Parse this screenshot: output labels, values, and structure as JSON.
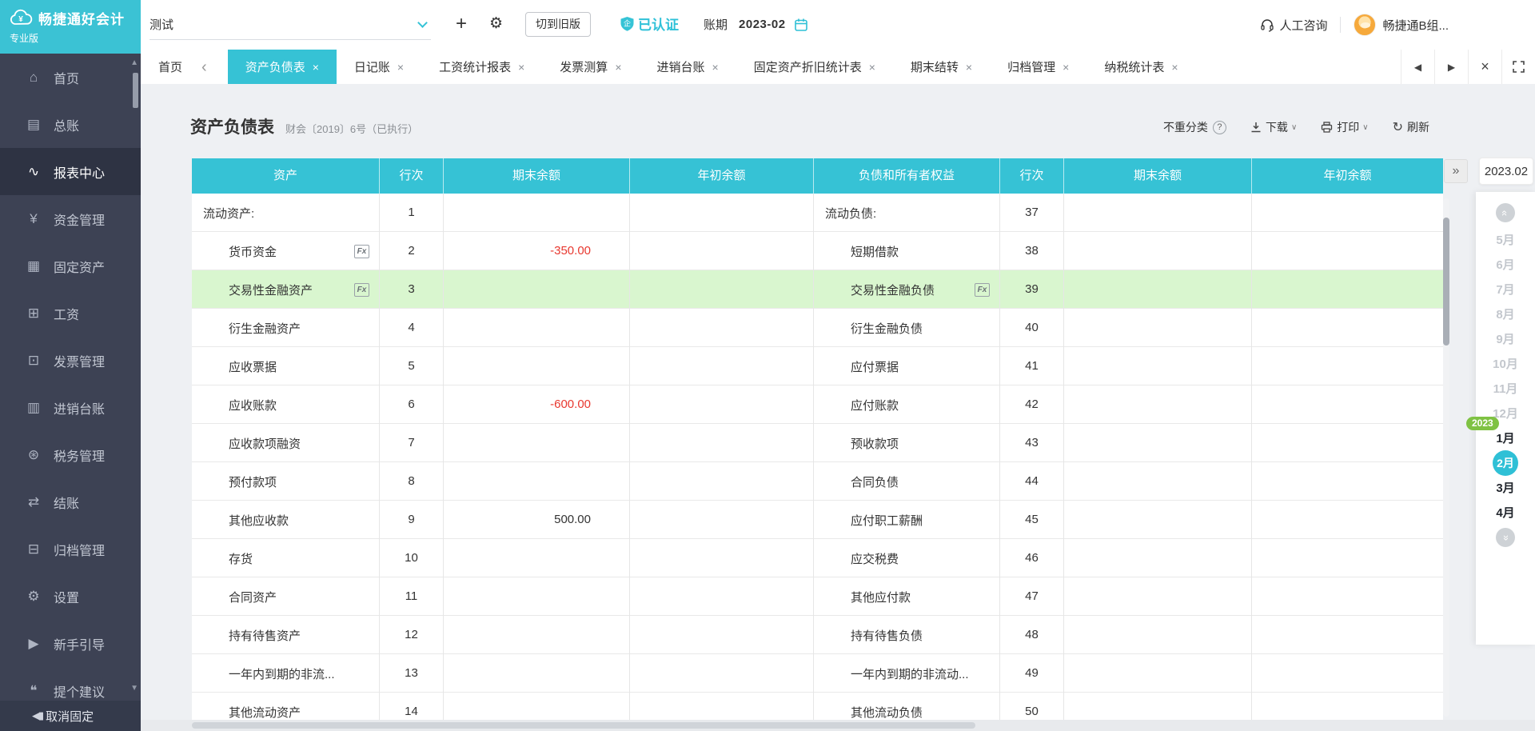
{
  "brand": {
    "name": "畅捷通好会计",
    "edition": "专业版"
  },
  "colors": {
    "accent": "#36c2d5",
    "highlight_row": "#d9f6cf",
    "negative": "#e8382f",
    "sidebar_bg": "#3d4254",
    "year_badge": "#7fc243"
  },
  "topbar": {
    "account": "测试",
    "new_tab": "+",
    "switch_old": "切到旧版",
    "certified": "已认证",
    "period_label": "账期",
    "period_value": "2023-02",
    "support": "人工咨询",
    "username": "畅捷通B组..."
  },
  "tabbar": {
    "home": "首页",
    "back": "‹",
    "close_glyph": "×",
    "tabs": [
      {
        "label": "资产负债表",
        "active": true
      },
      {
        "label": "日记账",
        "active": false
      },
      {
        "label": "工资统计报表",
        "active": false
      },
      {
        "label": "发票测算",
        "active": false
      },
      {
        "label": "进销台账",
        "active": false
      },
      {
        "label": "固定资产折旧统计表",
        "active": false
      },
      {
        "label": "期末结转",
        "active": false
      },
      {
        "label": "归档管理",
        "active": false
      },
      {
        "label": "纳税统计表",
        "active": false
      }
    ]
  },
  "sidebar": {
    "items": [
      {
        "icon": "home-icon",
        "glyph": "⌂",
        "label": "首页",
        "active": false
      },
      {
        "icon": "general-ledger-icon",
        "glyph": "▤",
        "label": "总账",
        "active": false
      },
      {
        "icon": "report-center-icon",
        "glyph": "∿",
        "label": "报表中心",
        "active": true
      },
      {
        "icon": "funds-management-icon",
        "glyph": "¥",
        "label": "资金管理",
        "active": false
      },
      {
        "icon": "fixed-assets-icon",
        "glyph": "▦",
        "label": "固定资产",
        "active": false
      },
      {
        "icon": "salary-icon",
        "glyph": "⊞",
        "label": "工资",
        "active": false
      },
      {
        "icon": "invoice-management-icon",
        "glyph": "⊡",
        "label": "发票管理",
        "active": false
      },
      {
        "icon": "purchase-sales-icon",
        "glyph": "▥",
        "label": "进销台账",
        "active": false
      },
      {
        "icon": "tax-management-icon",
        "glyph": "⊛",
        "label": "税务管理",
        "active": false
      },
      {
        "icon": "closing-icon",
        "glyph": "⇄",
        "label": "结账",
        "active": false
      },
      {
        "icon": "archive-management-icon",
        "glyph": "⊟",
        "label": "归档管理",
        "active": false
      },
      {
        "icon": "settings-icon",
        "glyph": "⚙",
        "label": "设置",
        "active": false
      },
      {
        "icon": "beginner-guide-icon",
        "glyph": "▶",
        "label": "新手引导",
        "active": false
      },
      {
        "icon": "feedback-icon",
        "glyph": "❝",
        "label": "提个建议",
        "active": false
      }
    ],
    "unpin": "取消固定"
  },
  "page": {
    "title": "资产负债表",
    "subtitle": "财会〔2019〕6号（已执行）",
    "toolbar": {
      "no_reclass": "不重分类",
      "download": "下载",
      "print": "打印",
      "refresh": "刷新"
    }
  },
  "table": {
    "headers": [
      "资产",
      "行次",
      "期末余额",
      "年初余额",
      "负债和所有者权益",
      "行次",
      "期末余额",
      "年初余额"
    ],
    "rows": [
      {
        "asset": "流动资产:",
        "asset_indent": false,
        "asset_fx": false,
        "asset_line": "1",
        "asset_end": "",
        "asset_begin": "",
        "liab": "流动负债:",
        "liab_indent": false,
        "liab_fx": false,
        "liab_line": "37",
        "liab_end": "",
        "liab_begin": "",
        "highlight": false
      },
      {
        "asset": "货币资金",
        "asset_indent": true,
        "asset_fx": true,
        "asset_line": "2",
        "asset_end": "-350.00",
        "asset_begin": "",
        "liab": "短期借款",
        "liab_indent": true,
        "liab_fx": false,
        "liab_line": "38",
        "liab_end": "",
        "liab_begin": "",
        "highlight": false
      },
      {
        "asset": "交易性金融资产",
        "asset_indent": true,
        "asset_fx": true,
        "asset_line": "3",
        "asset_end": "",
        "asset_begin": "",
        "liab": "交易性金融负债",
        "liab_indent": true,
        "liab_fx": true,
        "liab_line": "39",
        "liab_end": "",
        "liab_begin": "",
        "highlight": true
      },
      {
        "asset": "衍生金融资产",
        "asset_indent": true,
        "asset_fx": false,
        "asset_line": "4",
        "asset_end": "",
        "asset_begin": "",
        "liab": "衍生金融负债",
        "liab_indent": true,
        "liab_fx": false,
        "liab_line": "40",
        "liab_end": "",
        "liab_begin": "",
        "highlight": false
      },
      {
        "asset": "应收票据",
        "asset_indent": true,
        "asset_fx": false,
        "asset_line": "5",
        "asset_end": "",
        "asset_begin": "",
        "liab": "应付票据",
        "liab_indent": true,
        "liab_fx": false,
        "liab_line": "41",
        "liab_end": "",
        "liab_begin": "",
        "highlight": false
      },
      {
        "asset": "应收账款",
        "asset_indent": true,
        "asset_fx": false,
        "asset_line": "6",
        "asset_end": "-600.00",
        "asset_begin": "",
        "liab": "应付账款",
        "liab_indent": true,
        "liab_fx": false,
        "liab_line": "42",
        "liab_end": "",
        "liab_begin": "",
        "highlight": false
      },
      {
        "asset": "应收款项融资",
        "asset_indent": true,
        "asset_fx": false,
        "asset_line": "7",
        "asset_end": "",
        "asset_begin": "",
        "liab": "预收款项",
        "liab_indent": true,
        "liab_fx": false,
        "liab_line": "43",
        "liab_end": "",
        "liab_begin": "",
        "highlight": false
      },
      {
        "asset": "预付款项",
        "asset_indent": true,
        "asset_fx": false,
        "asset_line": "8",
        "asset_end": "",
        "asset_begin": "",
        "liab": "合同负债",
        "liab_indent": true,
        "liab_fx": false,
        "liab_line": "44",
        "liab_end": "",
        "liab_begin": "",
        "highlight": false
      },
      {
        "asset": "其他应收款",
        "asset_indent": true,
        "asset_fx": false,
        "asset_line": "9",
        "asset_end": "500.00",
        "asset_begin": "",
        "liab": "应付职工薪酬",
        "liab_indent": true,
        "liab_fx": false,
        "liab_line": "45",
        "liab_end": "",
        "liab_begin": "",
        "highlight": false
      },
      {
        "asset": "存货",
        "asset_indent": true,
        "asset_fx": false,
        "asset_line": "10",
        "asset_end": "",
        "asset_begin": "",
        "liab": "应交税费",
        "liab_indent": true,
        "liab_fx": false,
        "liab_line": "46",
        "liab_end": "",
        "liab_begin": "",
        "highlight": false
      },
      {
        "asset": "合同资产",
        "asset_indent": true,
        "asset_fx": false,
        "asset_line": "11",
        "asset_end": "",
        "asset_begin": "",
        "liab": "其他应付款",
        "liab_indent": true,
        "liab_fx": false,
        "liab_line": "47",
        "liab_end": "",
        "liab_begin": "",
        "highlight": false
      },
      {
        "asset": "持有待售资产",
        "asset_indent": true,
        "asset_fx": false,
        "asset_line": "12",
        "asset_end": "",
        "asset_begin": "",
        "liab": "持有待售负债",
        "liab_indent": true,
        "liab_fx": false,
        "liab_line": "48",
        "liab_end": "",
        "liab_begin": "",
        "highlight": false
      },
      {
        "asset": "一年内到期的非流...",
        "asset_indent": true,
        "asset_fx": false,
        "asset_line": "13",
        "asset_end": "",
        "asset_begin": "",
        "liab": "一年内到期的非流动...",
        "liab_indent": true,
        "liab_fx": false,
        "liab_line": "49",
        "liab_end": "",
        "liab_begin": "",
        "highlight": false
      },
      {
        "asset": "其他流动资产",
        "asset_indent": true,
        "asset_fx": false,
        "asset_line": "14",
        "asset_end": "",
        "asset_begin": "",
        "liab": "其他流动负债",
        "liab_indent": true,
        "liab_fx": false,
        "liab_line": "50",
        "liab_end": "",
        "liab_begin": "",
        "highlight": false
      }
    ]
  },
  "month_panel": {
    "current": "2023.02",
    "expand_glyph": "»",
    "year_badge": "2023",
    "months": [
      {
        "label": "5月",
        "state": "disabled",
        "badge": false
      },
      {
        "label": "6月",
        "state": "disabled",
        "badge": false
      },
      {
        "label": "7月",
        "state": "disabled",
        "badge": false
      },
      {
        "label": "8月",
        "state": "disabled",
        "badge": false
      },
      {
        "label": "9月",
        "state": "disabled",
        "badge": false
      },
      {
        "label": "10月",
        "state": "disabled",
        "badge": false
      },
      {
        "label": "11月",
        "state": "disabled",
        "badge": false
      },
      {
        "label": "12月",
        "state": "disabled",
        "badge": false
      },
      {
        "label": "1月",
        "state": "normal",
        "badge": true
      },
      {
        "label": "2月",
        "state": "active",
        "badge": false
      },
      {
        "label": "3月",
        "state": "normal",
        "badge": false
      },
      {
        "label": "4月",
        "state": "normal",
        "badge": false
      }
    ]
  }
}
